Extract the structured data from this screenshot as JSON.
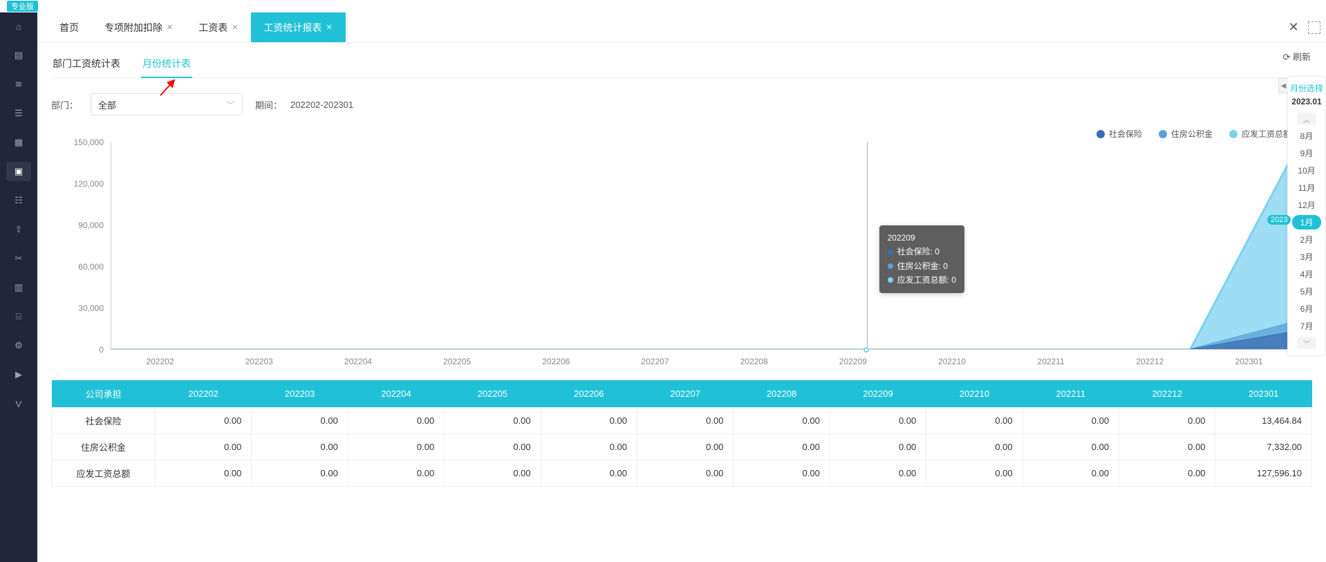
{
  "topbar": {
    "edition_badge": "专业版"
  },
  "sidebar": {
    "items": [
      {
        "name": "home-icon"
      },
      {
        "name": "doc-icon"
      },
      {
        "name": "chart-icon"
      },
      {
        "name": "bag-icon"
      },
      {
        "name": "building-icon"
      },
      {
        "name": "salary-icon",
        "active": true
      },
      {
        "name": "form-icon"
      },
      {
        "name": "export-icon"
      },
      {
        "name": "tools-icon"
      },
      {
        "name": "report-icon"
      },
      {
        "name": "tray-icon"
      },
      {
        "name": "gear-icon"
      },
      {
        "name": "play-icon"
      },
      {
        "name": "v-icon"
      }
    ]
  },
  "tabs": {
    "items": [
      {
        "label": "首页",
        "closable": false
      },
      {
        "label": "专项附加扣除",
        "closable": true
      },
      {
        "label": "工资表",
        "closable": true
      },
      {
        "label": "工资统计报表",
        "closable": true,
        "active": true
      }
    ]
  },
  "subtabs": {
    "items": [
      {
        "label": "部门工资统计表"
      },
      {
        "label": "月份统计表",
        "active": true
      }
    ]
  },
  "refresh_label": "刷新",
  "filters": {
    "dept_label": "部门：",
    "dept_value": "全部",
    "period_label": "期间：",
    "period_value": "202202-202301"
  },
  "legend": {
    "items": [
      {
        "label": "社会保险",
        "color": "#3b6db3"
      },
      {
        "label": "住房公积金",
        "color": "#5aa1da"
      },
      {
        "label": "应发工资总额",
        "color": "#7ed2ef"
      }
    ]
  },
  "chart": {
    "type": "area",
    "ylim": [
      0,
      150000
    ],
    "yticks": [
      0,
      30000,
      60000,
      90000,
      120000,
      150000
    ],
    "ytick_labels": [
      "0",
      "30,000",
      "60,000",
      "90,000",
      "120,000",
      "150,000"
    ],
    "x_categories": [
      "202202",
      "202203",
      "202204",
      "202205",
      "202206",
      "202207",
      "202208",
      "202209",
      "202210",
      "202211",
      "202212",
      "202301"
    ],
    "series": [
      {
        "name": "社会保险",
        "color": "#3b6db3",
        "values": [
          0,
          0,
          0,
          0,
          0,
          0,
          0,
          0,
          0,
          0,
          0,
          13464.84
        ]
      },
      {
        "name": "住房公积金",
        "color": "#5aa1da",
        "values": [
          0,
          0,
          0,
          0,
          0,
          0,
          0,
          0,
          0,
          0,
          0,
          20796.84
        ]
      },
      {
        "name": "应发工资总额",
        "color": "#7ed2ef",
        "values": [
          0,
          0,
          0,
          0,
          0,
          0,
          0,
          0,
          0,
          0,
          0,
          148392.94
        ]
      }
    ],
    "hover_index": 7,
    "tooltip": {
      "title": "202209",
      "rows": [
        {
          "label": "社会保险: 0",
          "color": "#3b6db3"
        },
        {
          "label": "住房公积金: 0",
          "color": "#5aa1da"
        },
        {
          "label": "应发工资总额: 0",
          "color": "#7ed2ef"
        }
      ]
    },
    "background_color": "#ffffff",
    "grid_color": "#e0e0e0"
  },
  "table": {
    "header_first": "公司承担",
    "columns": [
      "202202",
      "202203",
      "202204",
      "202205",
      "202206",
      "202207",
      "202208",
      "202209",
      "202210",
      "202211",
      "202212",
      "202301"
    ],
    "rows": [
      {
        "label": "社会保险",
        "values": [
          "0.00",
          "0.00",
          "0.00",
          "0.00",
          "0.00",
          "0.00",
          "0.00",
          "0.00",
          "0.00",
          "0.00",
          "0.00",
          "13,464.84"
        ]
      },
      {
        "label": "住房公积金",
        "values": [
          "0.00",
          "0.00",
          "0.00",
          "0.00",
          "0.00",
          "0.00",
          "0.00",
          "0.00",
          "0.00",
          "0.00",
          "0.00",
          "7,332.00"
        ]
      },
      {
        "label": "应发工资总额",
        "values": [
          "0.00",
          "0.00",
          "0.00",
          "0.00",
          "0.00",
          "0.00",
          "0.00",
          "0.00",
          "0.00",
          "0.00",
          "0.00",
          "127,596.10"
        ]
      }
    ]
  },
  "month_panel": {
    "title": "月份选择",
    "current": "2023.01",
    "year_tag": "2023",
    "months": [
      {
        "label": "8月"
      },
      {
        "label": "9月"
      },
      {
        "label": "10月"
      },
      {
        "label": "11月"
      },
      {
        "label": "12月"
      },
      {
        "label": "1月",
        "selected": true,
        "year_break": true
      },
      {
        "label": "2月"
      },
      {
        "label": "3月"
      },
      {
        "label": "4月"
      },
      {
        "label": "5月"
      },
      {
        "label": "6月"
      },
      {
        "label": "7月"
      }
    ]
  },
  "colors": {
    "accent": "#20c1d6"
  }
}
